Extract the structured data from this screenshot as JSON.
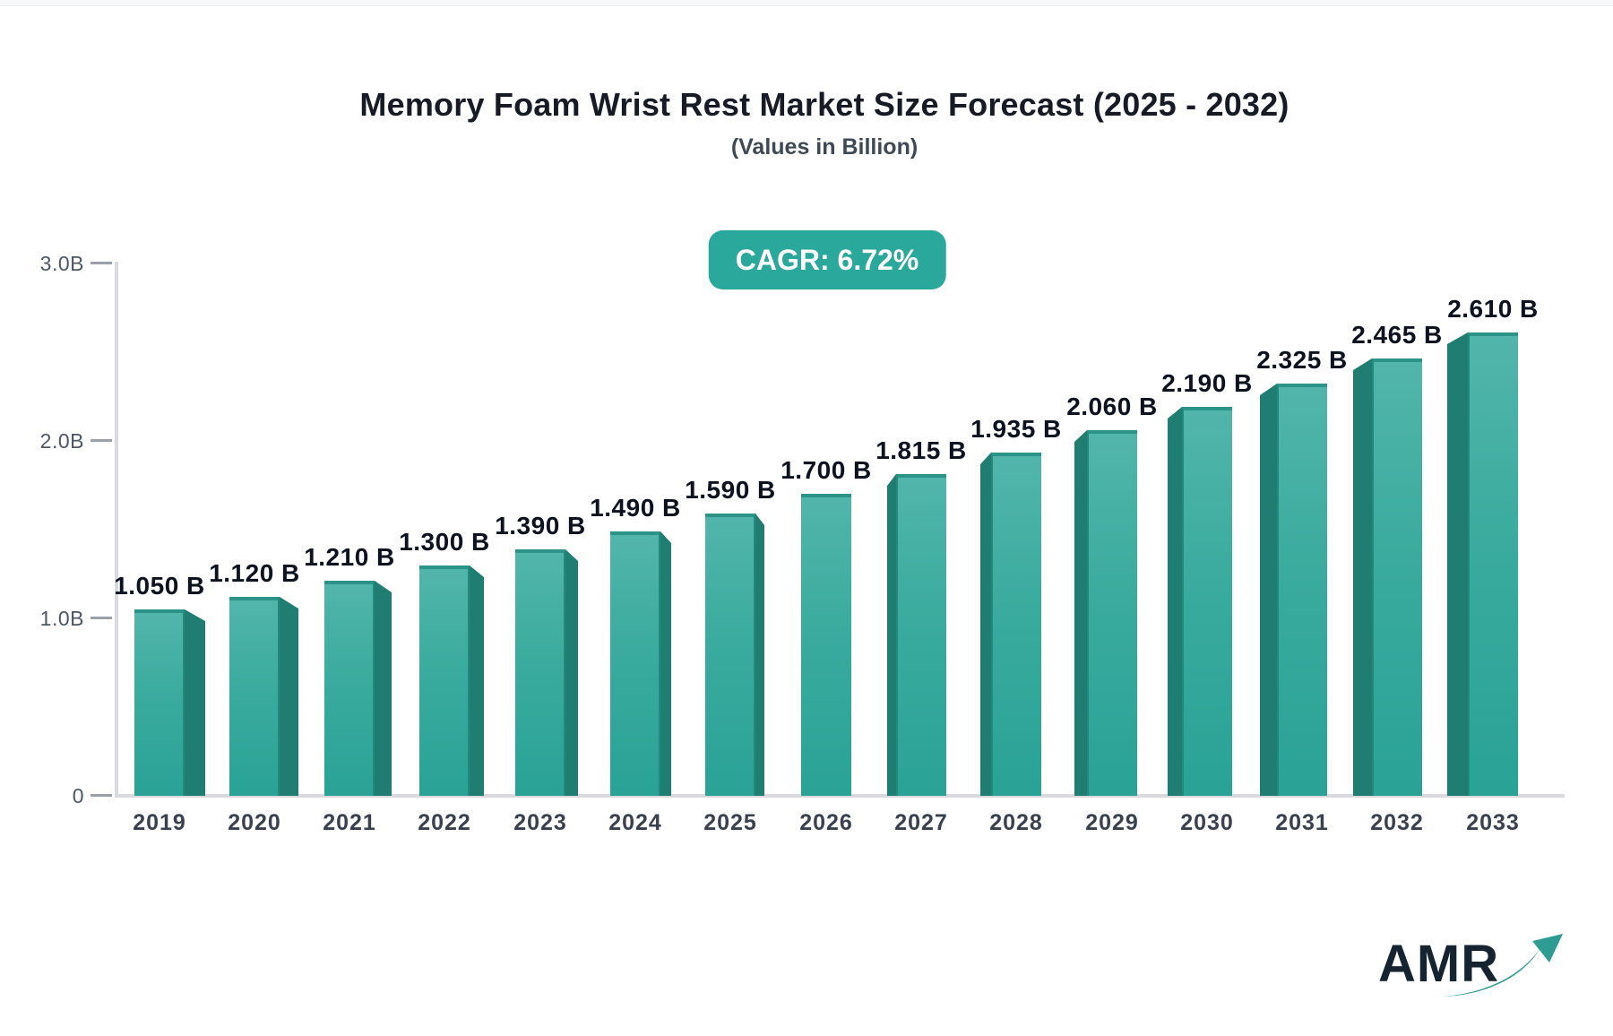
{
  "header": {
    "title": "Memory Foam Wrist Rest Market Size Forecast (2025 - 2032)",
    "subtitle": "(Values in Billion)",
    "cagr_label": "CAGR: 6.72%"
  },
  "colors": {
    "badge_bg": "#2aa89b",
    "bar_face_top": "#52b5ab",
    "bar_face_bottom": "#2aa296",
    "bar_side_face": "#1f7d71",
    "bar_top_cap": "#2c9388",
    "axis_line": "#d8dade",
    "tick_text": "#4d5767",
    "year_text": "#39404f",
    "value_text": "#0c1220",
    "logo_text": "#152430",
    "logo_arrow": "#2e9c93"
  },
  "chart_data": {
    "type": "bar",
    "title": "Memory Foam Wrist Rest Market Size Forecast (2025 - 2032)",
    "subtitle": "(Values in Billion)",
    "cagr_pct": 6.72,
    "unit": "Billion",
    "categories": [
      "2019",
      "2020",
      "2021",
      "2022",
      "2023",
      "2024",
      "2025",
      "2026",
      "2027",
      "2028",
      "2029",
      "2030",
      "2031",
      "2032",
      "2033"
    ],
    "values": [
      1.05,
      1.12,
      1.21,
      1.3,
      1.39,
      1.49,
      1.59,
      1.7,
      1.815,
      1.935,
      2.06,
      2.19,
      2.325,
      2.465,
      2.61
    ],
    "value_labels": [
      "1.050 B",
      "1.120 B",
      "1.210 B",
      "1.300 B",
      "1.390 B",
      "1.490 B",
      "1.590 B",
      "1.700 B",
      "1.815 B",
      "1.935 B",
      "2.060 B",
      "2.190 B",
      "2.325 B",
      "2.465 B",
      "2.610 B"
    ],
    "xlabel": "",
    "ylabel": "",
    "ylim": [
      0,
      3
    ],
    "y_ticks": [
      {
        "value": 3,
        "label": "3.0B"
      },
      {
        "value": 2,
        "label": "2.0B"
      },
      {
        "value": 1,
        "label": "1.0B"
      },
      {
        "value": 0,
        "label": "0"
      }
    ],
    "grid": false,
    "legend": false,
    "bar_style": "3d-perspective-teal"
  },
  "logo": {
    "text": "AMR"
  }
}
